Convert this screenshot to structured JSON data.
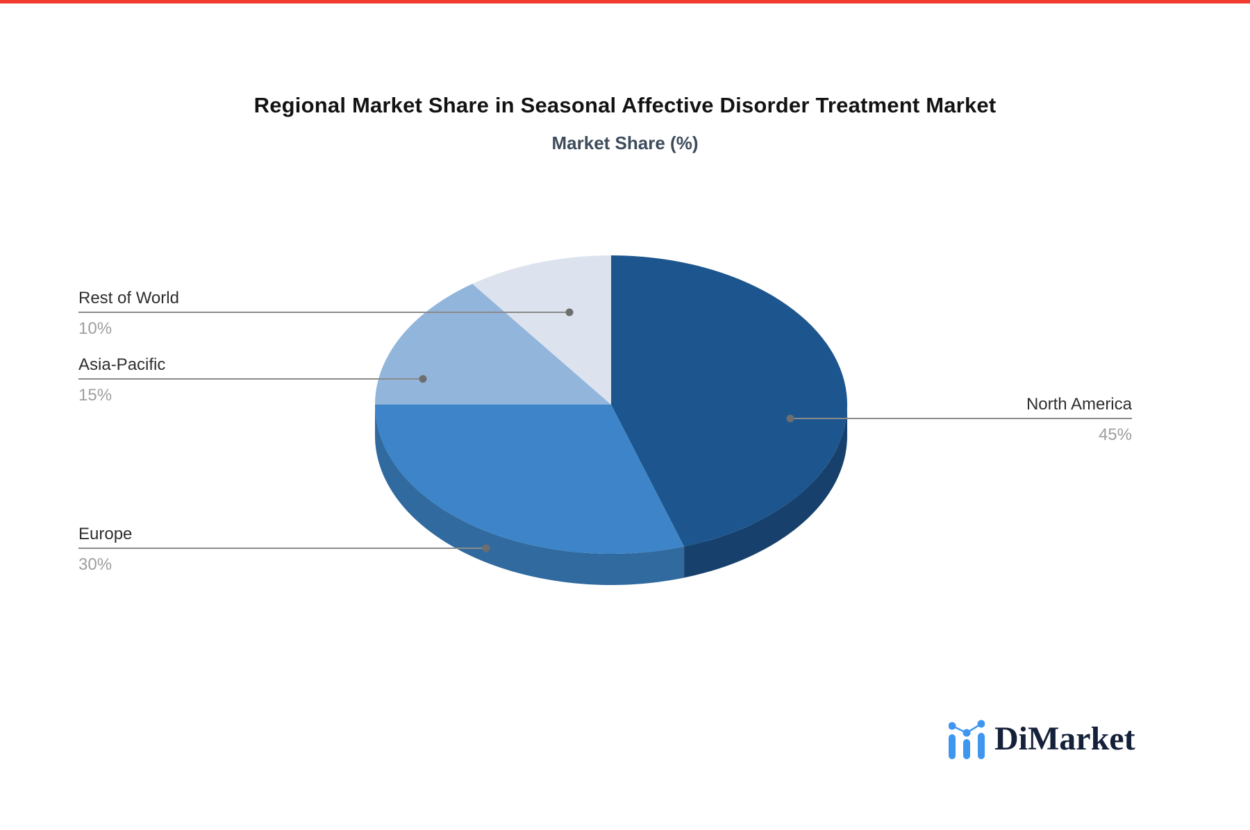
{
  "page": {
    "background": "#ffffff",
    "top_strip_color": "#f03b30"
  },
  "chart_data": {
    "type": "pie",
    "title": "Regional Market Share in Seasonal Affective Disorder Treatment Market",
    "subtitle": "Market Share (%)",
    "unit": "%",
    "start_angle_deg": 0,
    "direction": "clockwise",
    "style_3d": true,
    "legend_position": "none",
    "title_color": "#131313",
    "subtitle_color": "#3e4b5b",
    "callout_text_color": "#2e2e2e",
    "callout_value_color": "#9e9e9e",
    "leader_line_color": "#8a8a8a",
    "leader_dot_color": "#6e6e6e",
    "slices": [
      {
        "label": "North America",
        "value": 45,
        "display": "45%",
        "color": "#1d568e",
        "side_color": "#17416c",
        "callout_side": "right"
      },
      {
        "label": "Europe",
        "value": 30,
        "display": "30%",
        "color": "#3d85c8",
        "side_color": "#316a9e",
        "callout_side": "left"
      },
      {
        "label": "Asia-Pacific",
        "value": 15,
        "display": "15%",
        "color": "#92b5dc",
        "side_color": "#6e93bd",
        "callout_side": "left"
      },
      {
        "label": "Rest of World",
        "value": 10,
        "display": "10%",
        "color": "#dde3ee",
        "side_color": "#b5c4d8",
        "callout_side": "left"
      }
    ]
  },
  "branding": {
    "logo_text": "DiMarket",
    "logo_text_color": "#15213a",
    "logo_icon": "bar-chart-logo-icon",
    "logo_icon_color": "#3f96ef"
  }
}
